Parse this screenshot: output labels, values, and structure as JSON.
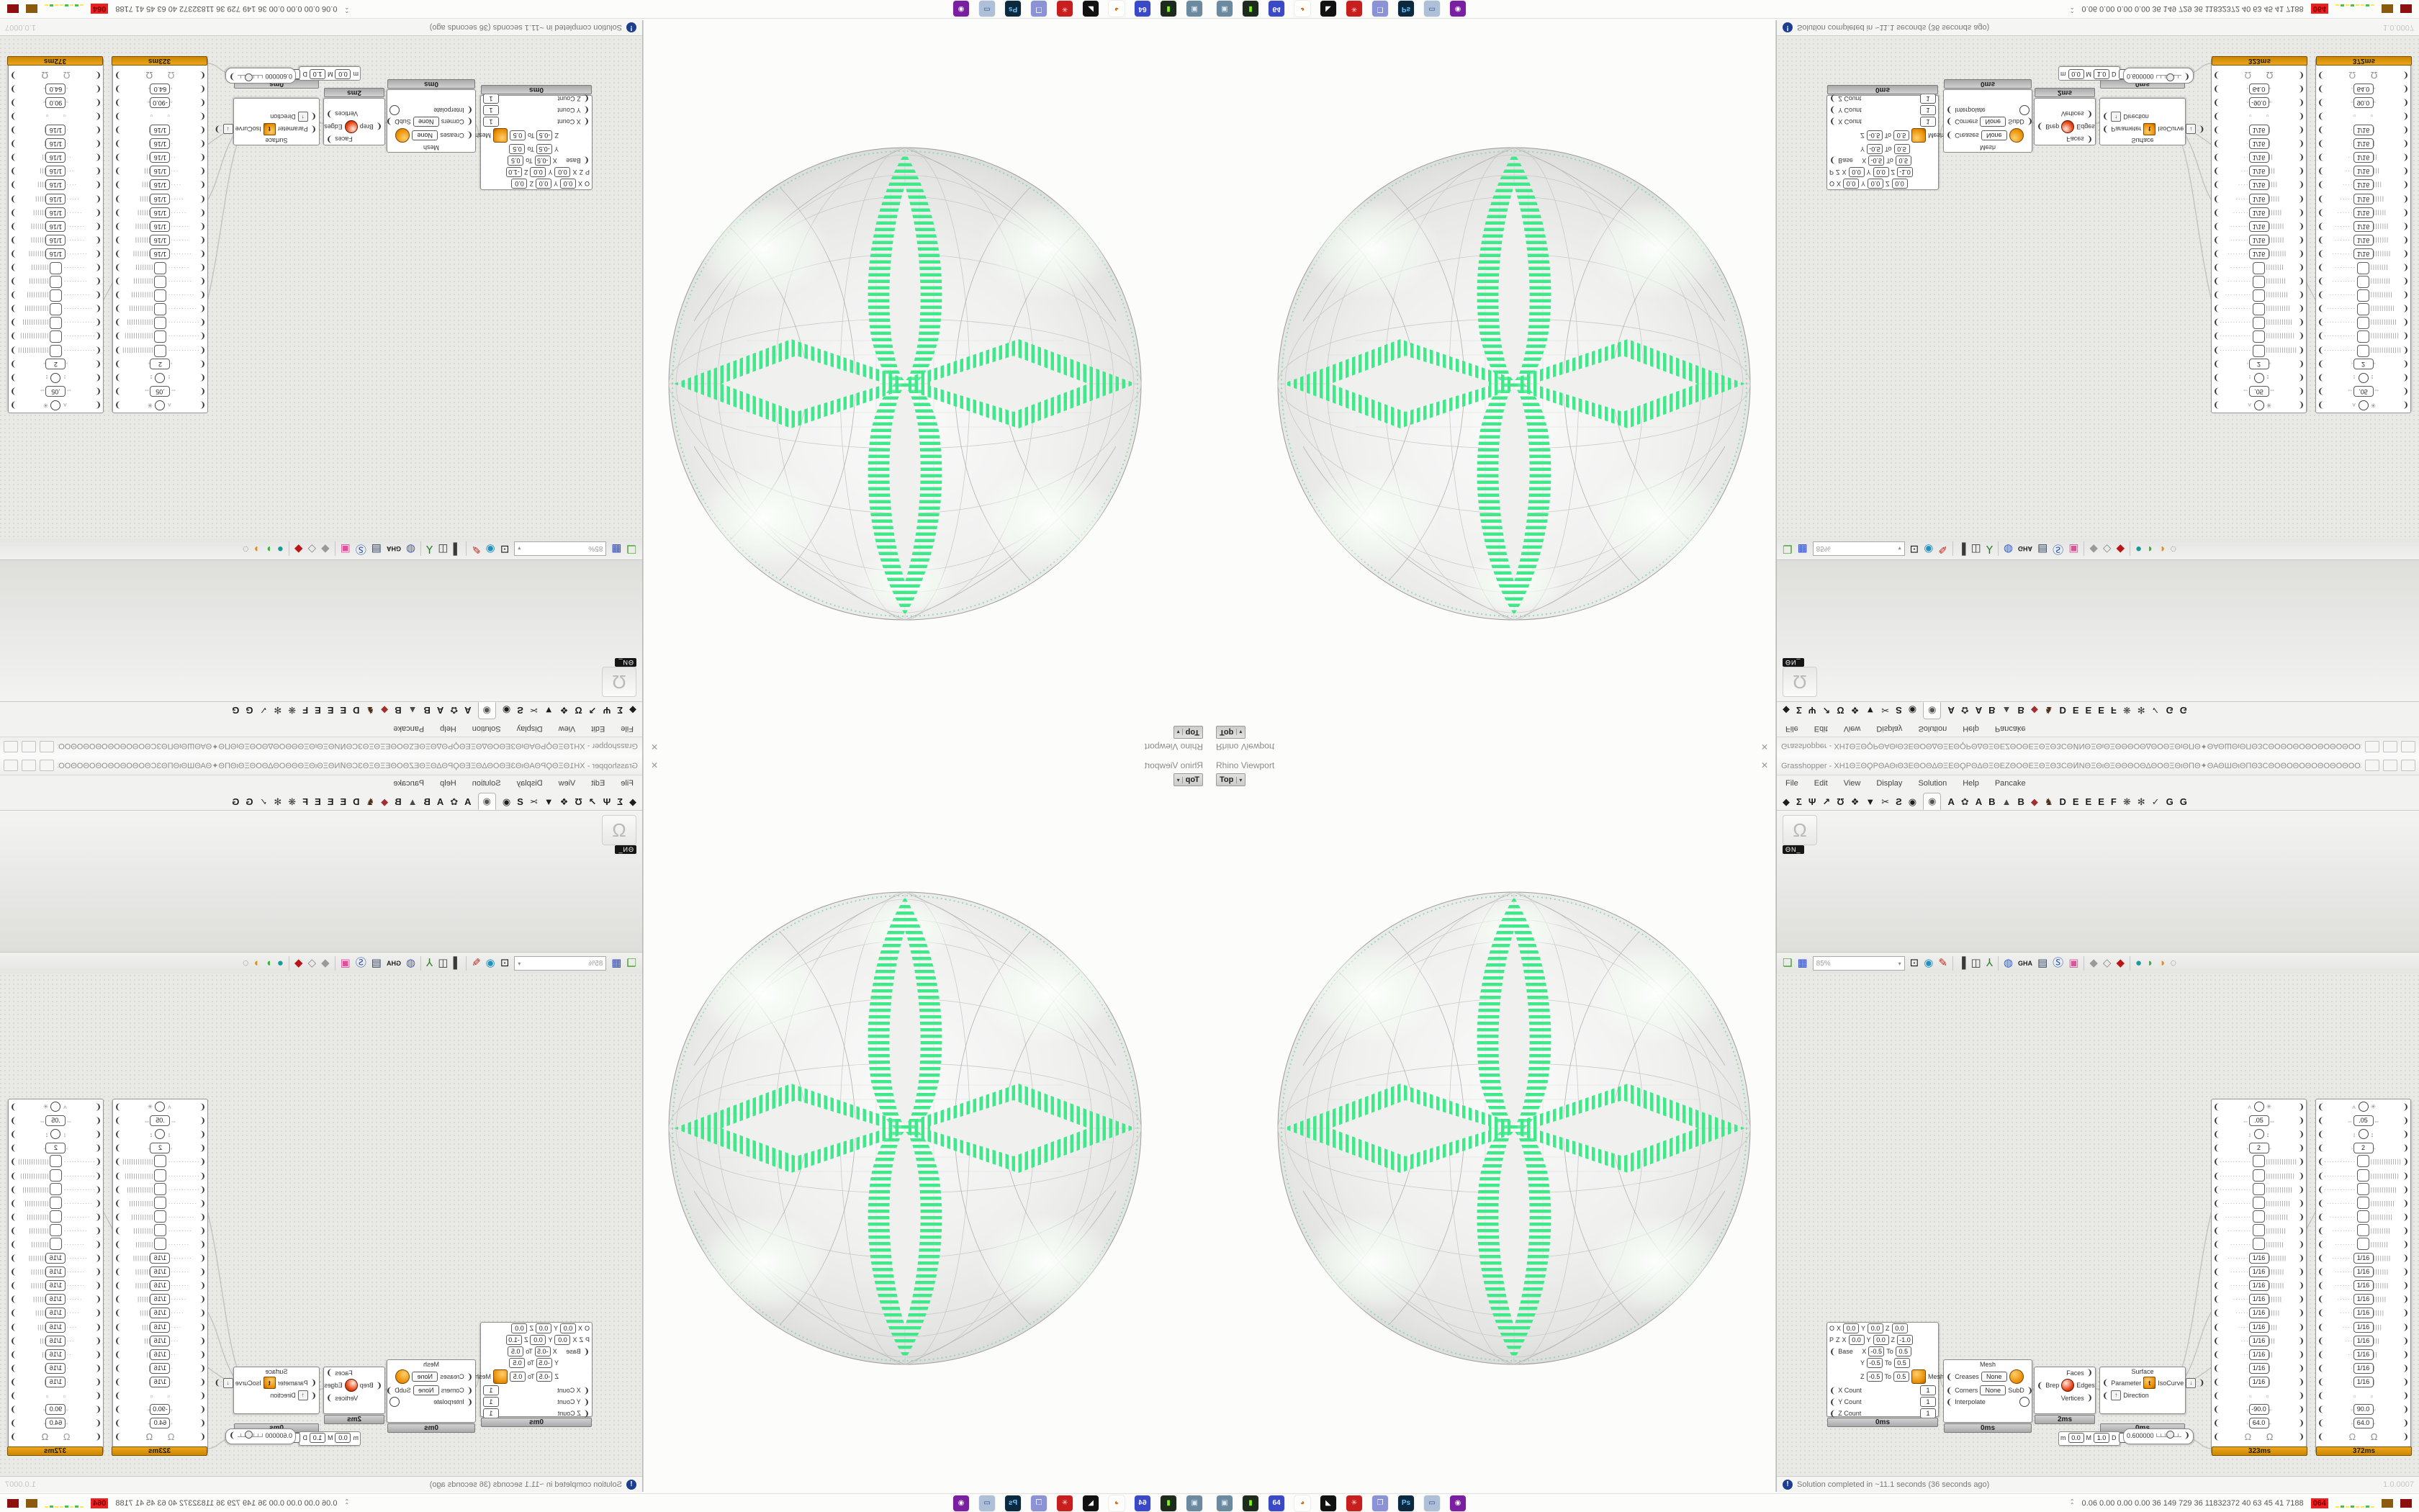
{
  "viewport": {
    "title": "Rhino Viewport",
    "projection": "Top",
    "dropdown_caret": "▾",
    "close_glyph": "✕"
  },
  "gh": {
    "window_title": "Grasshopper - XH1ΘΞΘϘΡΘΑΘιΘЗΕΘΟΘΔΘΞΕΘϘΡΘΔΘΞΘΕΖΘΟΘΕΞΘΞΘЗϹΘͶΝΘΞΘιΘΞΘΘΘΟΘΔΘΟΘΞΘιΘΠΘ✦ΘΑΘШΘιΘΠΘЗϹΘΟΘΟΘΟΘΟΘΟΘΟΘΟΟЗ⌐",
    "window_buttons": [
      "–",
      "□",
      "✕"
    ],
    "menu": [
      "File",
      "Edit",
      "View",
      "Display",
      "Solution",
      "Help",
      "Pancake"
    ],
    "tabs_front": [
      "◆",
      "Σ",
      "Ψ",
      "↗",
      "Ʊ",
      "❖",
      "▼",
      "✂",
      "Ƨ",
      "◉"
    ],
    "selected_tab_glyph": "◉",
    "tabs_back": [
      {
        "g": "A",
        "c": "#1d1d1d"
      },
      {
        "g": "✿",
        "c": "#3b3b3b"
      },
      {
        "g": "A",
        "c": "#1d1d1d"
      },
      {
        "g": "B",
        "c": "#1d1d1d"
      },
      {
        "g": "▲",
        "c": "#4a4a4a"
      },
      {
        "g": "B",
        "c": "#1d1d1d"
      },
      {
        "g": "◆",
        "c": "#a03030"
      },
      {
        "g": "♞",
        "c": "#4a2c12"
      },
      {
        "g": "D",
        "c": "#1d1d1d"
      },
      {
        "g": "E",
        "c": "#1d1d1d"
      },
      {
        "g": "E",
        "c": "#1d1d1d"
      },
      {
        "g": "E",
        "c": "#1d1d1d"
      },
      {
        "g": "F",
        "c": "#1d1d1d"
      },
      {
        "g": "❋",
        "c": "#3b3b3b"
      },
      {
        "g": "✻",
        "c": "#3b3b3b"
      },
      {
        "g": "✓",
        "c": "#3b3b3b"
      },
      {
        "g": "G",
        "c": "#1d1d1d"
      },
      {
        "g": "G",
        "c": "#1d1d1d"
      }
    ],
    "palette": {
      "icon_glyph": "Ω",
      "badge": "ΘΝ_"
    },
    "toolbar": {
      "zoom_value": "85%",
      "icons": [
        {
          "name": "open-file-icon",
          "g": "❏",
          "c": "#3f9e22"
        },
        {
          "name": "save-file-icon",
          "g": "▦",
          "c": "#2746c8"
        },
        {
          "name": "zoom-extents-icon",
          "g": "⊡",
          "c": "#1c1c1c"
        },
        {
          "name": "preview-eye-icon",
          "g": "◉",
          "c": "#2191c0"
        },
        {
          "name": "wire-pen-icon",
          "g": "✎",
          "c": "#c22214"
        },
        {
          "name": "film-icon",
          "g": "▐",
          "c": "#3a3a3a"
        },
        {
          "name": "camera-icon",
          "g": "◫",
          "c": "#3a3a3a"
        },
        {
          "name": "tripod-icon",
          "g": "⅄",
          "c": "#2a7a2a"
        },
        {
          "name": "ghx-icon",
          "g": "◍",
          "c": "#3d5bc0"
        },
        {
          "name": "gha-icon",
          "g": "GHA",
          "c": "#1a1a1a"
        },
        {
          "name": "document-icon",
          "g": "▤",
          "c": "#31435e"
        },
        {
          "name": "finder-icon",
          "g": "Ⓢ",
          "c": "#2255aa"
        },
        {
          "name": "package-icon",
          "g": "▣",
          "c": "#e04f9a"
        },
        {
          "name": "gem-gray-icon",
          "g": "◆",
          "c": "#9a9a9a"
        },
        {
          "name": "gem-light-icon",
          "g": "◇",
          "c": "#8a8a8a"
        },
        {
          "name": "gem-red-icon",
          "g": "◆",
          "c": "#bb1515"
        },
        {
          "name": "ball-teal-icon",
          "g": "●",
          "c": "#1a9a96"
        },
        {
          "name": "ball-green-icon",
          "g": "◗",
          "c": "#35b33a"
        },
        {
          "name": "ball-orange-icon",
          "g": "◑",
          "c": "#e09020"
        },
        {
          "name": "selection-ellipse-icon",
          "g": "◌",
          "c": "#777777"
        }
      ]
    },
    "status": {
      "message": "Solution completed in ~11.1 seconds (36 seconds ago)",
      "version": "1.0.0007",
      "icon_glyph": "!"
    }
  },
  "canvas": {
    "mesh_box": {
      "o_glyph": "Ο",
      "p_glyph": "P",
      "z_glyph": "Z",
      "px": "0.0",
      "py": "0.0",
      "pz": "0.0",
      "zx": "0.0",
      "zy": "0.0",
      "zz": "-1.0",
      "base_label": "Base",
      "to_label": "To",
      "bx_min": "-0.5",
      "bx_max": "0.5",
      "by_min": "-0.5",
      "by_max": "0.5",
      "bz_min": "-0.5",
      "bz_max": "0.5",
      "x_count": "X Count",
      "y_count": "Y Count",
      "z_count": "Z Count",
      "count_value": "1",
      "output": "Mesh",
      "time": "0ms"
    },
    "subd": {
      "mesh_label": "Mesh",
      "creases_label": "Creases",
      "creases_value": "None",
      "corners_label": "Corners",
      "corners_value": "None",
      "interpolate_label": "Interpolate",
      "output": "SubD",
      "time": "0ms"
    },
    "edges": {
      "input": "Brep",
      "outputs": [
        "Faces",
        "Edges",
        "Vertices"
      ],
      "time": "2ms"
    },
    "isocurve": {
      "surface_label": "Surface",
      "parameter_label": "Parameter",
      "direction_label": "Direction",
      "param_icon_text": "t",
      "direction_glyph": "↑",
      "output": "IsoCurve",
      "output_glyph": "↓",
      "time": "0ms"
    },
    "domain_widget": {
      "m": "m",
      "m_value": "0.0",
      "M": "M",
      "M_value": "1.0",
      "D": "D",
      "D_value": "6"
    },
    "slider": {
      "value": "0.600000"
    },
    "stacks": {
      "header": [
        {
          "side": "˄",
          "mid_type": "circle",
          "side2": "✳"
        },
        {
          "side": "⇔",
          "mid_type": "cap",
          "value": ".05",
          "side2": "⇔"
        },
        {
          "side": "↕",
          "mid_type": "circle",
          "side2": "↕"
        },
        {
          "side": "◦",
          "mid_type": "cap",
          "value": "2",
          "side2": "◦"
        }
      ],
      "square_rows": [
        14,
        13,
        12,
        11,
        10,
        9,
        8
      ],
      "fraction_rows": [
        8,
        7,
        7,
        6,
        5,
        4,
        3,
        2,
        1,
        1
      ],
      "fraction_value": "1/16",
      "dot_row_glyph": "▫",
      "size_value": "64.0",
      "omega_glyph": "Ω",
      "left": {
        "angle": "-90.0",
        "time": "323ms"
      },
      "right": {
        "angle": "90.0",
        "time": "372ms"
      }
    }
  },
  "taskbar": {
    "apps": [
      {
        "name": "screen-recorder-icon",
        "bg": "#6b8aa0",
        "fg": "#dfeaf2",
        "g": "▣"
      },
      {
        "name": "code-editor-icon",
        "bg": "#1d2b1d",
        "fg": "#7cfc00",
        "g": "▮"
      },
      {
        "name": "floppy64-icon",
        "bg": "#3a49c8",
        "fg": "#ffffff",
        "g": "64"
      },
      {
        "name": "firefox-icon",
        "bg": "#ffffff",
        "fg": "#e66000",
        "g": "◕"
      },
      {
        "name": "cat-app-icon",
        "bg": "#111111",
        "fg": "#ffffff",
        "g": "◣"
      },
      {
        "name": "red-gear-icon",
        "bg": "#c81e1e",
        "fg": "#ffdddd",
        "g": "✳"
      },
      {
        "name": "window-app-icon",
        "bg": "#8b93d6",
        "fg": "#ffffff",
        "g": "❐"
      },
      {
        "name": "photoshop-icon",
        "bg": "#0c2a3f",
        "fg": "#6fc3ff",
        "g": "Ps"
      },
      {
        "name": "terminal-icon",
        "bg": "#aebfd8",
        "fg": "#2b4a8b",
        "g": "▭"
      },
      {
        "name": "chat-app-icon",
        "bg": "#7a1fa2",
        "fg": "#ffffff",
        "g": "◉"
      }
    ],
    "tray": {
      "caret_glyph": "⌃",
      "values": [
        "0.06",
        "0.00",
        "0.00",
        "0.00",
        "36",
        "149",
        "729",
        "36",
        "11832372",
        "40",
        "63",
        "45",
        "41",
        "7188"
      ],
      "badge": "064",
      "block_colors": [
        "#8a5a10",
        "#8d1010"
      ]
    }
  }
}
